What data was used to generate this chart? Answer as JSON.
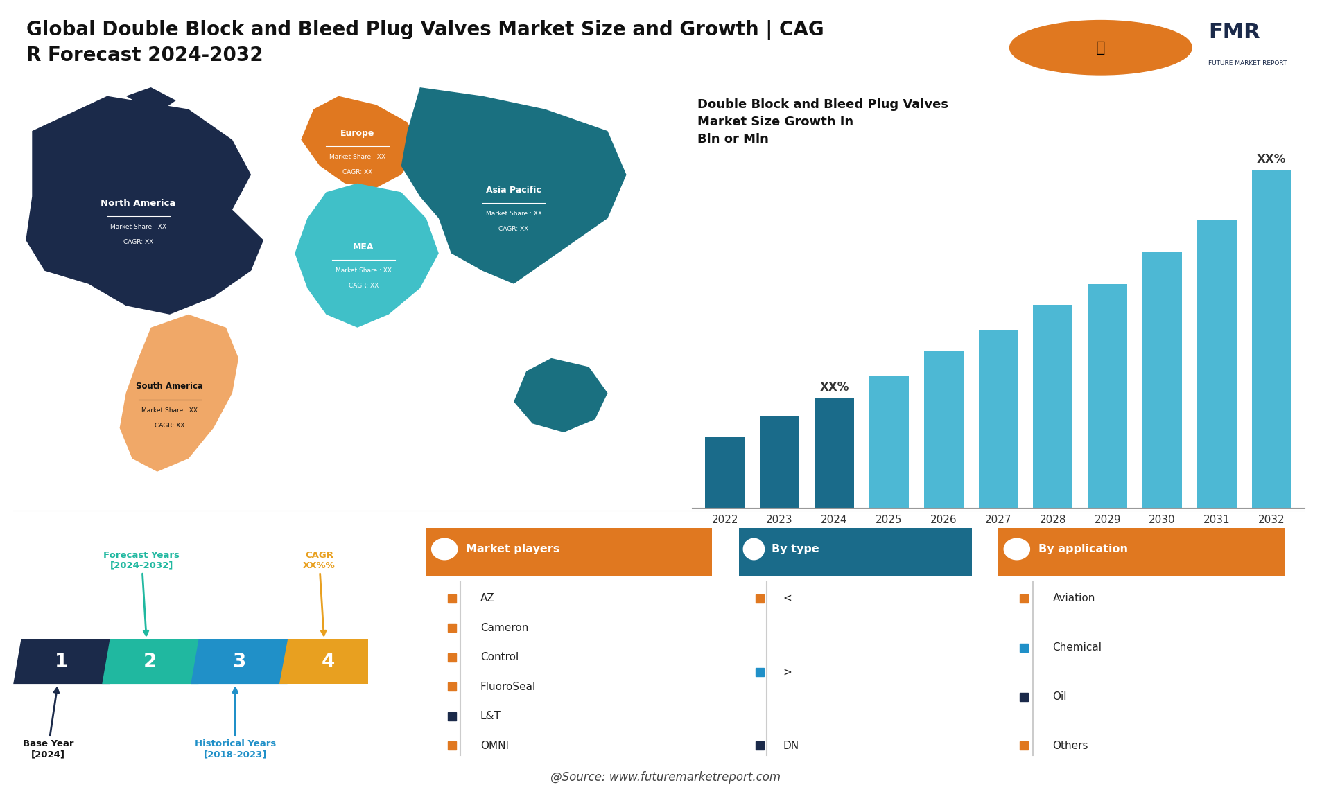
{
  "title": "Global Double Block and Bleed Plug Valves Market Size and Growth | CAG\nR Forecast 2024-2032",
  "title_fontsize": 20,
  "bg_color": "#ffffff",
  "chart_title": "Double Block and Bleed Plug Valves\nMarket Size Growth In\nBln or Mln",
  "bar_years": [
    "2022",
    "2023",
    "2024",
    "2025",
    "2026",
    "2027",
    "2028",
    "2029",
    "2030",
    "2031",
    "2032"
  ],
  "bar_heights": [
    2.0,
    2.6,
    3.1,
    3.7,
    4.4,
    5.0,
    5.7,
    6.3,
    7.2,
    8.1,
    9.5
  ],
  "bar_colors": [
    "#1a6b8a",
    "#1a6b8a",
    "#1a6b8a",
    "#4db8d4",
    "#4db8d4",
    "#4db8d4",
    "#4db8d4",
    "#4db8d4",
    "#4db8d4",
    "#4db8d4",
    "#4db8d4"
  ],
  "bar_annotation_idx": [
    2,
    10
  ],
  "bar_annotation_text": [
    "XX%",
    "XX%"
  ],
  "na_color": "#1b2a4a",
  "sa_color": "#f0a868",
  "eu_color": "#e07820",
  "mea_color": "#40c0c8",
  "ap_color": "#1a7080",
  "regions": {
    "North America": {
      "ms": "Market Share : XX",
      "cagr": "CAGR: XX"
    },
    "South America": {
      "ms": "Market Share : XX",
      "cagr": "CAGR: XX"
    },
    "Europe": {
      "ms": "Market Share : XX",
      "cagr": "CAGR: XX"
    },
    "MEA": {
      "ms": "Market Share : XX",
      "cagr": "CAGR: XX"
    },
    "Asia Pacific": {
      "ms": "Market Share : XX",
      "cagr": "CAGR: XX"
    }
  },
  "seg_colors": [
    "#1b2a4a",
    "#20b8a0",
    "#2090c8",
    "#e8a020"
  ],
  "seg_nums": [
    "1",
    "2",
    "3",
    "4"
  ],
  "market_players": [
    "AZ",
    "Cameron",
    "Control",
    "FluoroSeal",
    "L&T",
    "OMNI"
  ],
  "mp_colors": [
    "#e07820",
    "#e07820",
    "#e07820",
    "#e07820",
    "#1b2a4a",
    "#e07820"
  ],
  "by_type": [
    "<",
    ">",
    "DN"
  ],
  "bt_colors": [
    "#e07820",
    "#2090c8",
    "#1b2a4a"
  ],
  "by_application": [
    "Aviation",
    "Chemical",
    "Oil",
    "Others"
  ],
  "ba_colors": [
    "#e07820",
    "#2090c8",
    "#1b2a4a",
    "#e07820"
  ],
  "source_text": "@Source: www.futuremarketreport.com",
  "color_orange": "#e07820",
  "color_teal": "#1a7080",
  "color_dark": "#1b2a4a",
  "teal_header": "#1a6b8a"
}
